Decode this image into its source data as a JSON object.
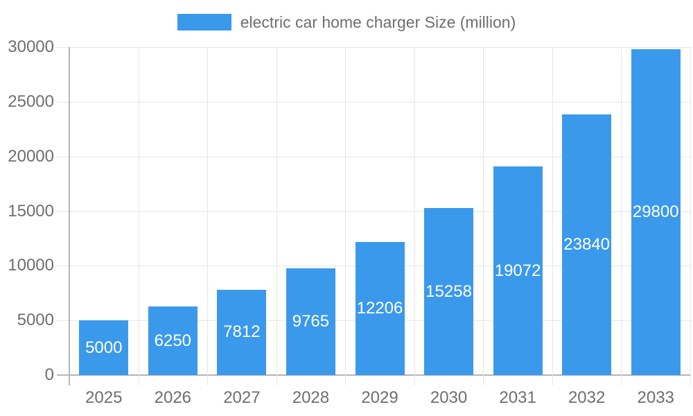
{
  "legend": {
    "label": "electric car home charger Size (million)"
  },
  "colors": {
    "bar": "#3b99ec",
    "grid": "#e6e6e6",
    "axis": "#b5b5b5",
    "tick": "#e6e6e6",
    "tick_dark": "#b9b9b9",
    "text": "#6e6e6e",
    "bar_label": "#ffffff",
    "background": "#ffffff"
  },
  "chart_data": {
    "type": "bar",
    "title": "",
    "legend_label": "electric car home charger Size (million)",
    "legend_position": "top",
    "categories": [
      "2025",
      "2026",
      "2027",
      "2028",
      "2029",
      "2030",
      "2031",
      "2032",
      "2033"
    ],
    "values": [
      5000,
      6250,
      7812,
      9765,
      12206,
      15258,
      19072,
      23840,
      29800
    ],
    "xlabel": "",
    "ylabel": "",
    "ylim": [
      0,
      30000
    ],
    "y_ticks": [
      0,
      5000,
      10000,
      15000,
      20000,
      25000,
      30000
    ],
    "grid": true,
    "value_labels": "inside-center"
  }
}
